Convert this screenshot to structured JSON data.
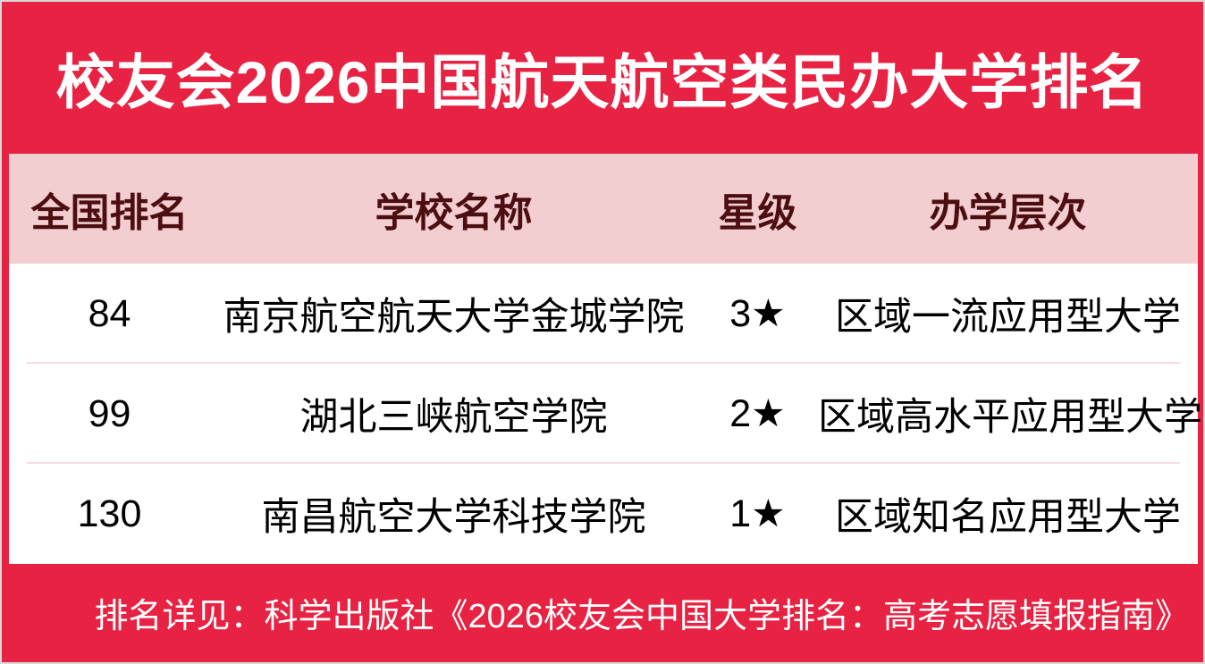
{
  "title": "校友会2026中国航天航空类民办大学排名",
  "footer": "排名详见：科学出版社《2026校友会中国大学排名：高考志愿填报指南》",
  "chart_data": {
    "type": "table",
    "title": "校友会2026中国航天航空类民办大学排名",
    "columns": [
      "全国排名",
      "学校名称",
      "星级",
      "办学层次"
    ],
    "rows": [
      {
        "rank": "84",
        "school": "南京航空航天大学金城学院",
        "star": "3★",
        "level": "区域一流应用型大学"
      },
      {
        "rank": "99",
        "school": "湖北三峡航空学院",
        "star": "2★",
        "level": "区域高水平应用型大学"
      },
      {
        "rank": "130",
        "school": "南昌航空大学科技学院",
        "star": "1★",
        "level": "区域知名应用型大学"
      }
    ]
  },
  "colors": {
    "background_red": "#E82242",
    "header_pink": "#F2CED1",
    "header_text_maroon": "#4C0E11",
    "row_divider_pink": "#F8DCE0",
    "title_text": "#FFFFFF",
    "body_text": "#000000"
  }
}
